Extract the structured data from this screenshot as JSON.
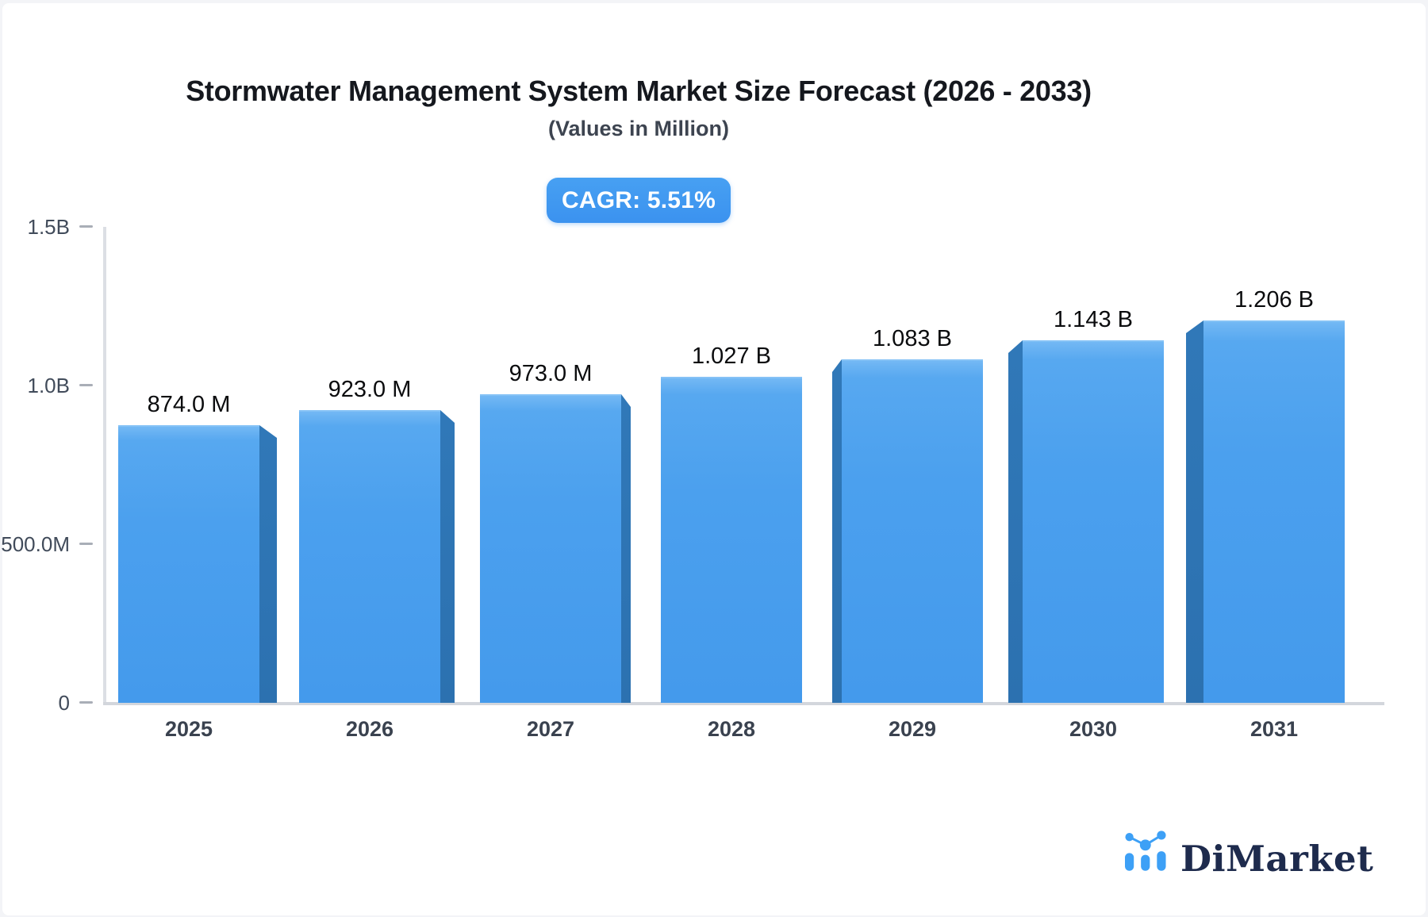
{
  "page": {
    "brand": {
      "name": "DiMarket"
    }
  },
  "chart_data": {
    "type": "bar",
    "title": "Stormwater Management System Market Size Forecast (2026 - 2033)",
    "subtitle": "(Values in Million)",
    "cagr_label": "CAGR: 5.51%",
    "categories": [
      "2025",
      "2026",
      "2027",
      "2028",
      "2029",
      "2030",
      "2031"
    ],
    "values_millions": [
      874,
      923,
      973,
      1027,
      1083,
      1143,
      1206
    ],
    "bar_labels": [
      "874.0 M",
      "923.0 M",
      "973.0 M",
      "1.027 B",
      "1.083 B",
      "1.143 B",
      "1.206 B"
    ],
    "xlabel": "",
    "ylabel": "",
    "ylim_millions": [
      0,
      1500
    ],
    "y_ticks": [
      {
        "label": "1.5B",
        "value_millions": 1500
      },
      {
        "label": "1.0B",
        "value_millions": 1000
      },
      {
        "label": "500.0M",
        "value_millions": 500
      },
      {
        "label": "0",
        "value_millions": 0
      }
    ],
    "grid": false,
    "legend": false,
    "style": "3d-perspective-bars",
    "colors": {
      "bar_face": "#479ded",
      "bar_face_highlight": "#73b8f4",
      "bar_side": "#2e74b4",
      "badge_bg": "#3e96f0",
      "badge_text": "#ffffff",
      "axis_line": "#dcdfe4",
      "baseline": "#d3d6dc",
      "tick_dash": "#a9aeb7",
      "title_text": "#15181e",
      "value_label_text": "#0b0c0e",
      "year_label_text": "#3a424f",
      "y_label_text": "#414b5a",
      "logo_text": "#1e2b4d",
      "logo_blue": "#3da0f6"
    }
  }
}
